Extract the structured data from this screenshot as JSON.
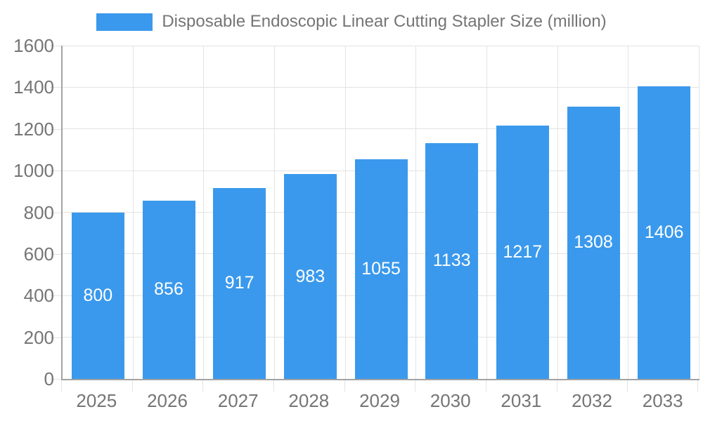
{
  "chart_data": {
    "type": "bar",
    "title": "Disposable Endoscopic Linear Cutting Stapler Size (million)",
    "legend_position": "top",
    "categories": [
      "2025",
      "2026",
      "2027",
      "2028",
      "2029",
      "2030",
      "2031",
      "2032",
      "2033"
    ],
    "values": [
      800,
      856,
      917,
      983,
      1055,
      1133,
      1217,
      1308,
      1406
    ],
    "yticks": [
      "0",
      "200",
      "400",
      "600",
      "800",
      "1000",
      "1200",
      "1400",
      "1600"
    ],
    "ylim": [
      0,
      1600
    ],
    "ytick_step": 200,
    "grid": true,
    "xlabel": "",
    "ylabel": "",
    "colors": {
      "bar": "#3A99EC",
      "grid": "#E3E3E3",
      "axis_line": "#A3A3A3",
      "axis_text": "#757575",
      "bar_label": "#FFFFFF",
      "background": "#FFFFFF"
    }
  }
}
